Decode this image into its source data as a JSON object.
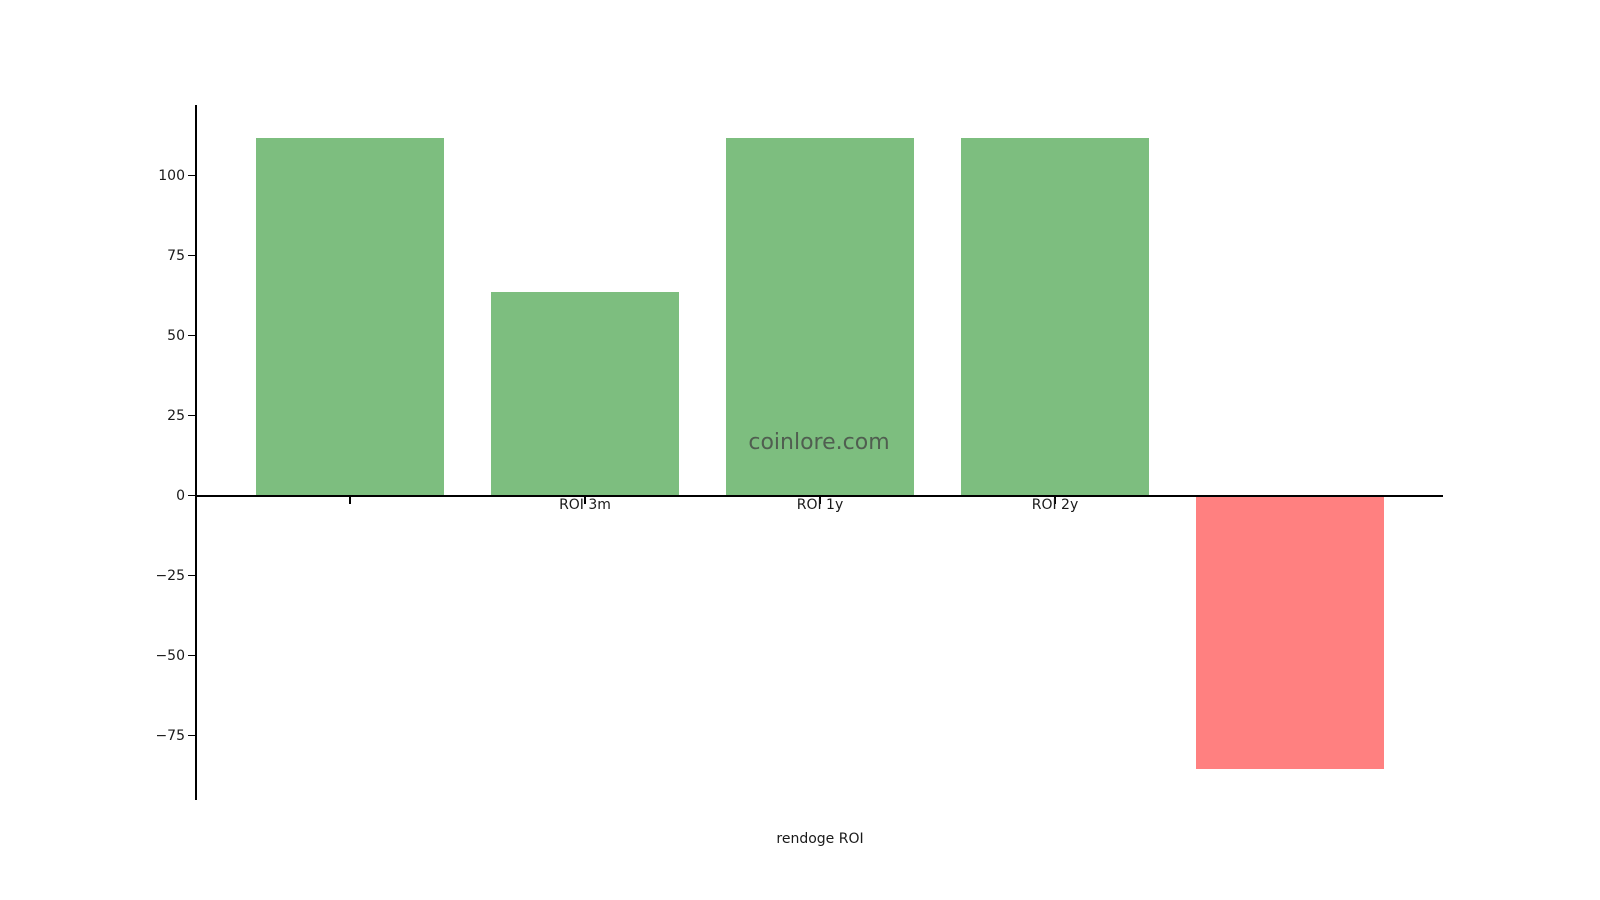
{
  "chart_data": {
    "type": "bar",
    "title": "",
    "xlabel": "rendoge ROI",
    "ylabel": "",
    "categories": [
      "",
      "ROI 3m",
      "ROI 1y",
      "ROI 2y",
      ""
    ],
    "values": [
      111.7,
      63.5,
      111.7,
      111.7,
      -85
    ],
    "yticks": [
      {
        "value": 100,
        "label": "100"
      },
      {
        "value": 75,
        "label": "75"
      },
      {
        "value": 50,
        "label": "50"
      },
      {
        "value": 25,
        "label": "25"
      },
      {
        "value": 0,
        "label": "0"
      },
      {
        "value": -25,
        "label": "−25"
      },
      {
        "value": -50,
        "label": "−50"
      },
      {
        "value": -75,
        "label": "−75"
      }
    ],
    "ylim": [
      -95,
      122
    ],
    "grid": false,
    "legend_position": "none",
    "colors": {
      "positive_bar": "#7DBE7F",
      "negative_bar": "#FF8080",
      "axis": "#000000",
      "tick_text": "#1a1a1a"
    }
  },
  "watermark": {
    "text": "coinlore.com",
    "color": "#444444"
  }
}
